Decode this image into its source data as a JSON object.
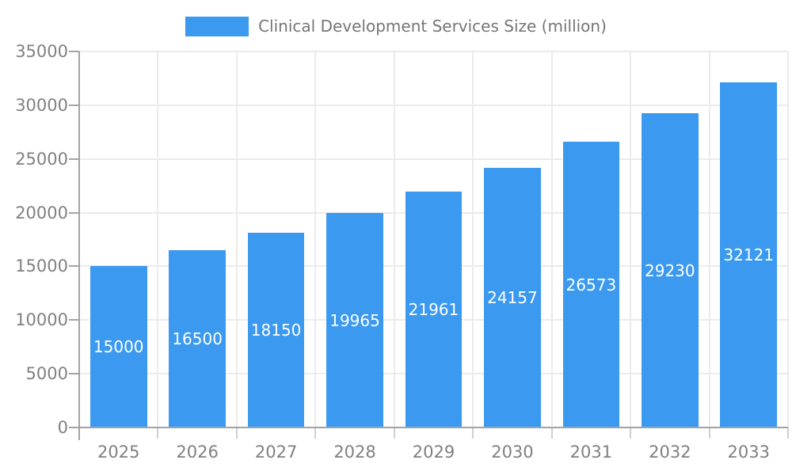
{
  "chart_data": {
    "type": "bar",
    "title": "Clinical Development Services Size (million)",
    "categories": [
      "2025",
      "2026",
      "2027",
      "2028",
      "2029",
      "2030",
      "2031",
      "2032",
      "2033"
    ],
    "values": [
      15000,
      16500,
      18150,
      19965,
      21961,
      24157,
      26573,
      29230,
      32121
    ],
    "xlabel": "",
    "ylabel": "",
    "ylim": [
      0,
      35000
    ],
    "yticks": [
      0,
      5000,
      10000,
      15000,
      20000,
      25000,
      30000,
      35000
    ],
    "grid": true,
    "legend_position": "top",
    "colors": {
      "bar": "#3B99F0",
      "value_label": "#FFFFFF",
      "axis_label": "#808080",
      "title": "#757575",
      "gridline": "#EBEBEB",
      "axis_line": "#A3A3A3",
      "boundary_tick": "#CFCFCF"
    }
  }
}
